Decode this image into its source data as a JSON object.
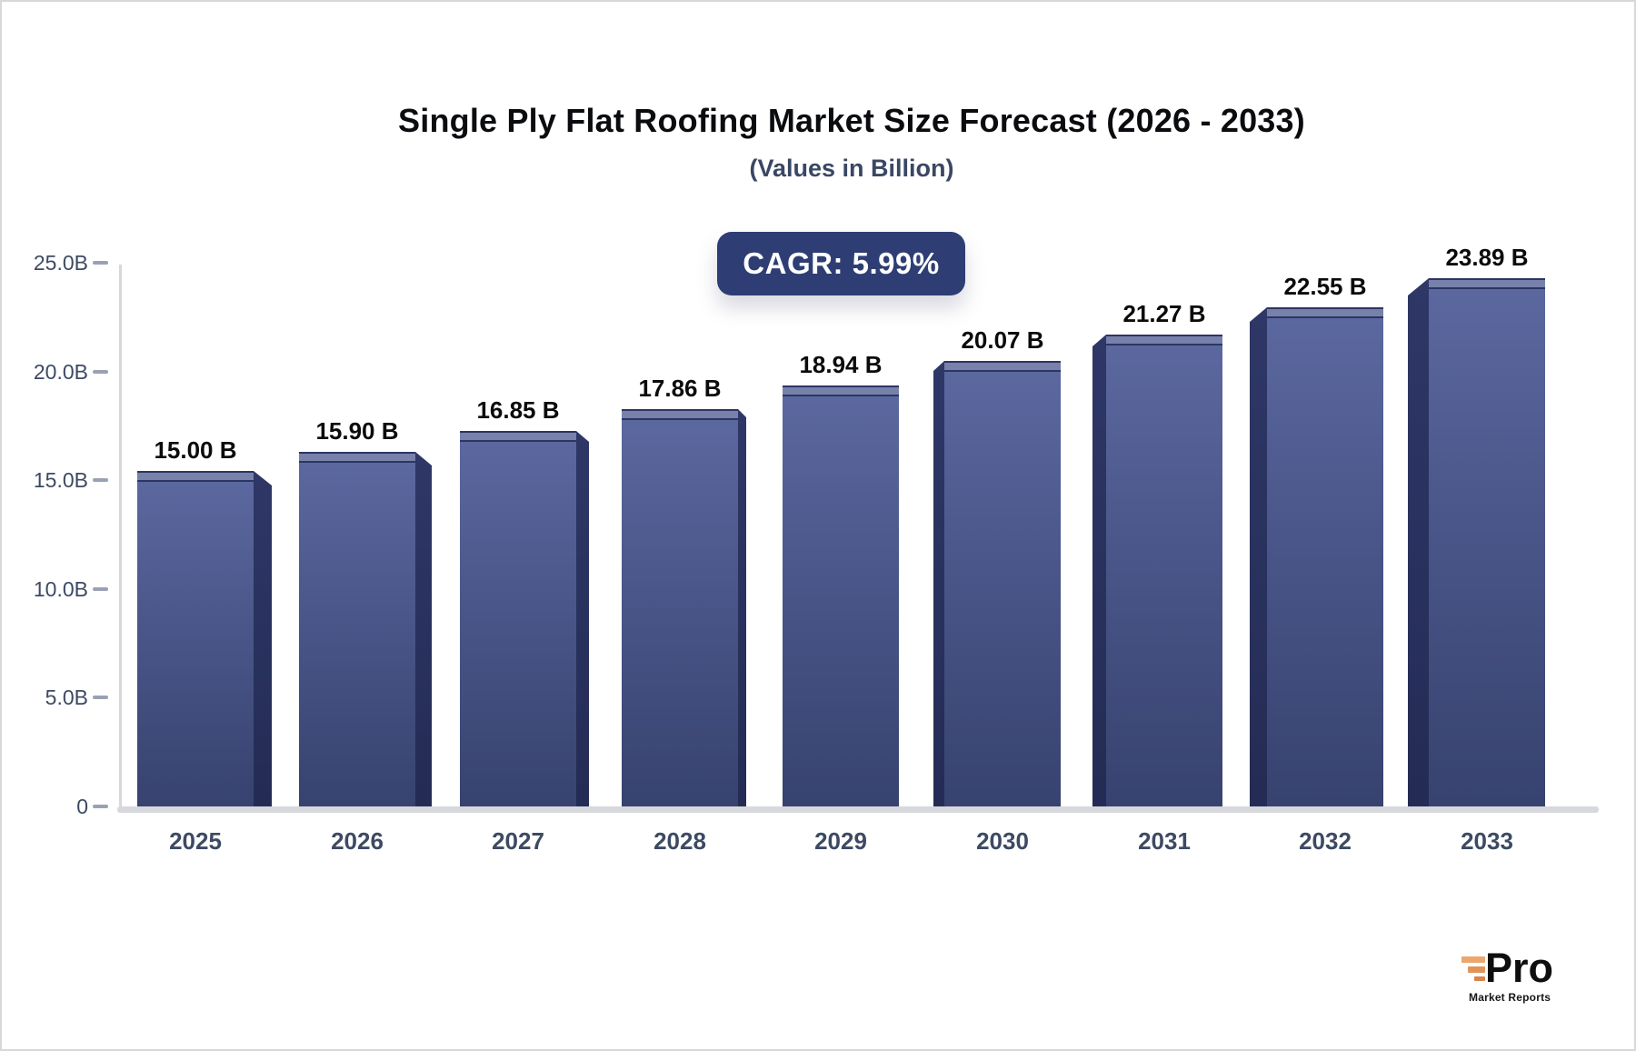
{
  "header": {
    "title": "Single Ply Flat Roofing Market Size Forecast (2026 - 2033)",
    "subtitle": "(Values in Billion)"
  },
  "badge": {
    "label": "CAGR: 5.99%",
    "bg_color": "#2e3e74",
    "text_color": "#ffffff"
  },
  "chart_data": {
    "type": "bar",
    "title": "Single Ply Flat Roofing Market Size Forecast (2026 - 2033)",
    "subtitle": "(Values in Billion)",
    "categories": [
      "2025",
      "2026",
      "2027",
      "2028",
      "2029",
      "2030",
      "2031",
      "2032",
      "2033"
    ],
    "values": [
      15.0,
      15.9,
      16.85,
      17.86,
      18.94,
      20.07,
      21.27,
      22.55,
      23.89
    ],
    "bar_labels": [
      "15.00 B",
      "15.90 B",
      "16.85 B",
      "17.86 B",
      "18.94 B",
      "20.07 B",
      "21.27 B",
      "22.55 B",
      "23.89 B"
    ],
    "y_ticks": [
      {
        "label": "25.0B",
        "value": 25
      },
      {
        "label": "20.0B",
        "value": 20
      },
      {
        "label": "15.0B",
        "value": 15
      },
      {
        "label": "10.0B",
        "value": 10
      },
      {
        "label": "5.0B",
        "value": 5
      },
      {
        "label": "0",
        "value": 0
      }
    ],
    "ylim": [
      0,
      25
    ],
    "xlabel": "",
    "ylabel": "",
    "grid": false,
    "legend": null,
    "style": {
      "bar_face_top": "#5b689f",
      "bar_face_bottom": "#37426f",
      "bar_side": "#2a3360",
      "bar_top_face": "#7781aa",
      "axis_color": "#d7d8dd",
      "tick_label_color": "#3d4a63",
      "value_label_color": "#0b0b0b"
    }
  },
  "logo": {
    "name": "Pro",
    "subtext": "Market Reports",
    "accent_color": "#e59a62"
  }
}
